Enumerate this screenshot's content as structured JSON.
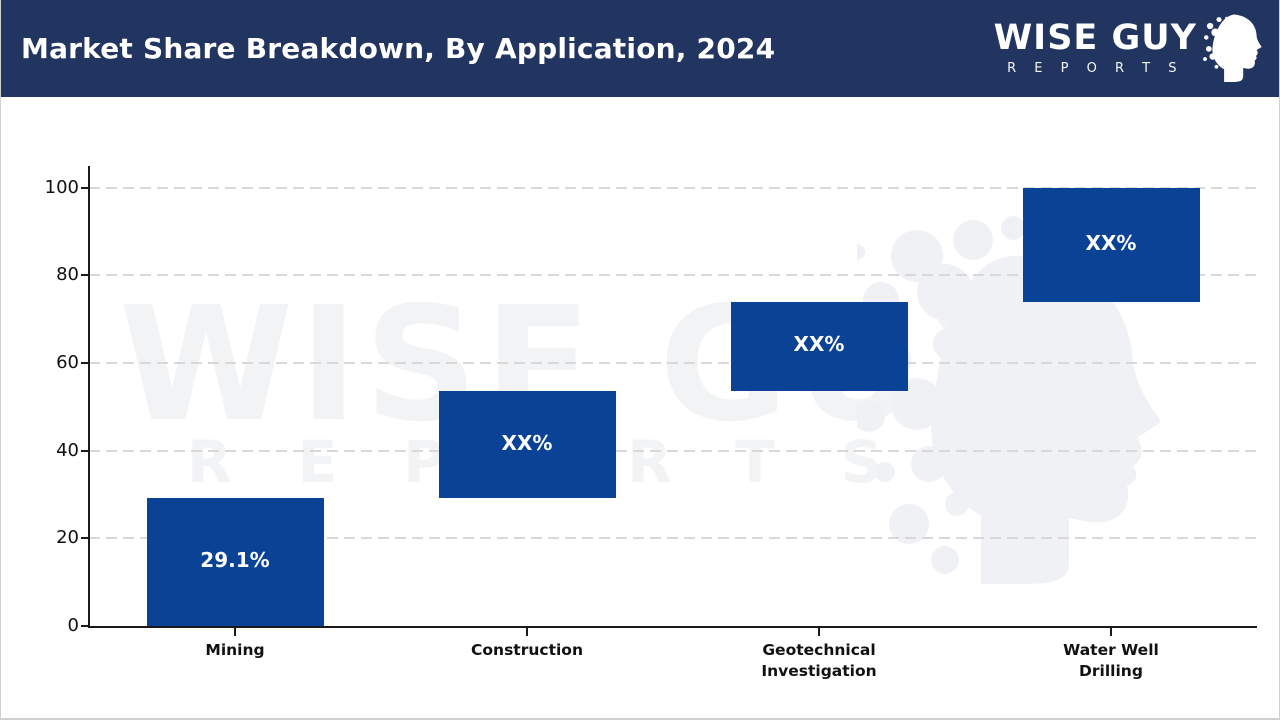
{
  "header": {
    "title": "Market Share Breakdown, By Application, 2024",
    "logo_name": "WISE GUY",
    "logo_subtitle": "R E P O R T S"
  },
  "watermark": {
    "line1": "WISE GUY",
    "line2": "REPORTS"
  },
  "colors": {
    "header_bg": "#223561",
    "bar_blue": "#0a4296",
    "axis": "#1a1a1a",
    "gridline": "#d8d8d8",
    "watermark_gray": "#f0f1f4",
    "label_dark": "#111111",
    "bar_label_white": "#ffffff"
  },
  "chart_data": {
    "type": "bar",
    "subtype": "waterfall",
    "title": "Market Share Breakdown, By Application, 2024",
    "xlabel": "",
    "ylabel": "",
    "ylim": [
      0,
      105
    ],
    "yticks": [
      0,
      20,
      40,
      60,
      80,
      100
    ],
    "grid": "horizontal dashed",
    "legend": "none",
    "categories": [
      "Mining",
      "Construction",
      "Geotechnical Investigation",
      "Water Well Drilling"
    ],
    "category_label_lines": [
      [
        "Mining"
      ],
      [
        "Construction"
      ],
      [
        "Geotechnical",
        "Investigation"
      ],
      [
        "Water Well",
        "Drilling"
      ]
    ],
    "segments": [
      {
        "category": "Mining",
        "start": 0,
        "end": 29.1,
        "label": "29.1%"
      },
      {
        "category": "Construction",
        "start": 29.1,
        "end": 53.6,
        "label": "XX%"
      },
      {
        "category": "Geotechnical Investigation",
        "start": 53.6,
        "end": 73.9,
        "label": "XX%"
      },
      {
        "category": "Water Well Drilling",
        "start": 73.9,
        "end": 100,
        "label": "XX%"
      }
    ]
  }
}
